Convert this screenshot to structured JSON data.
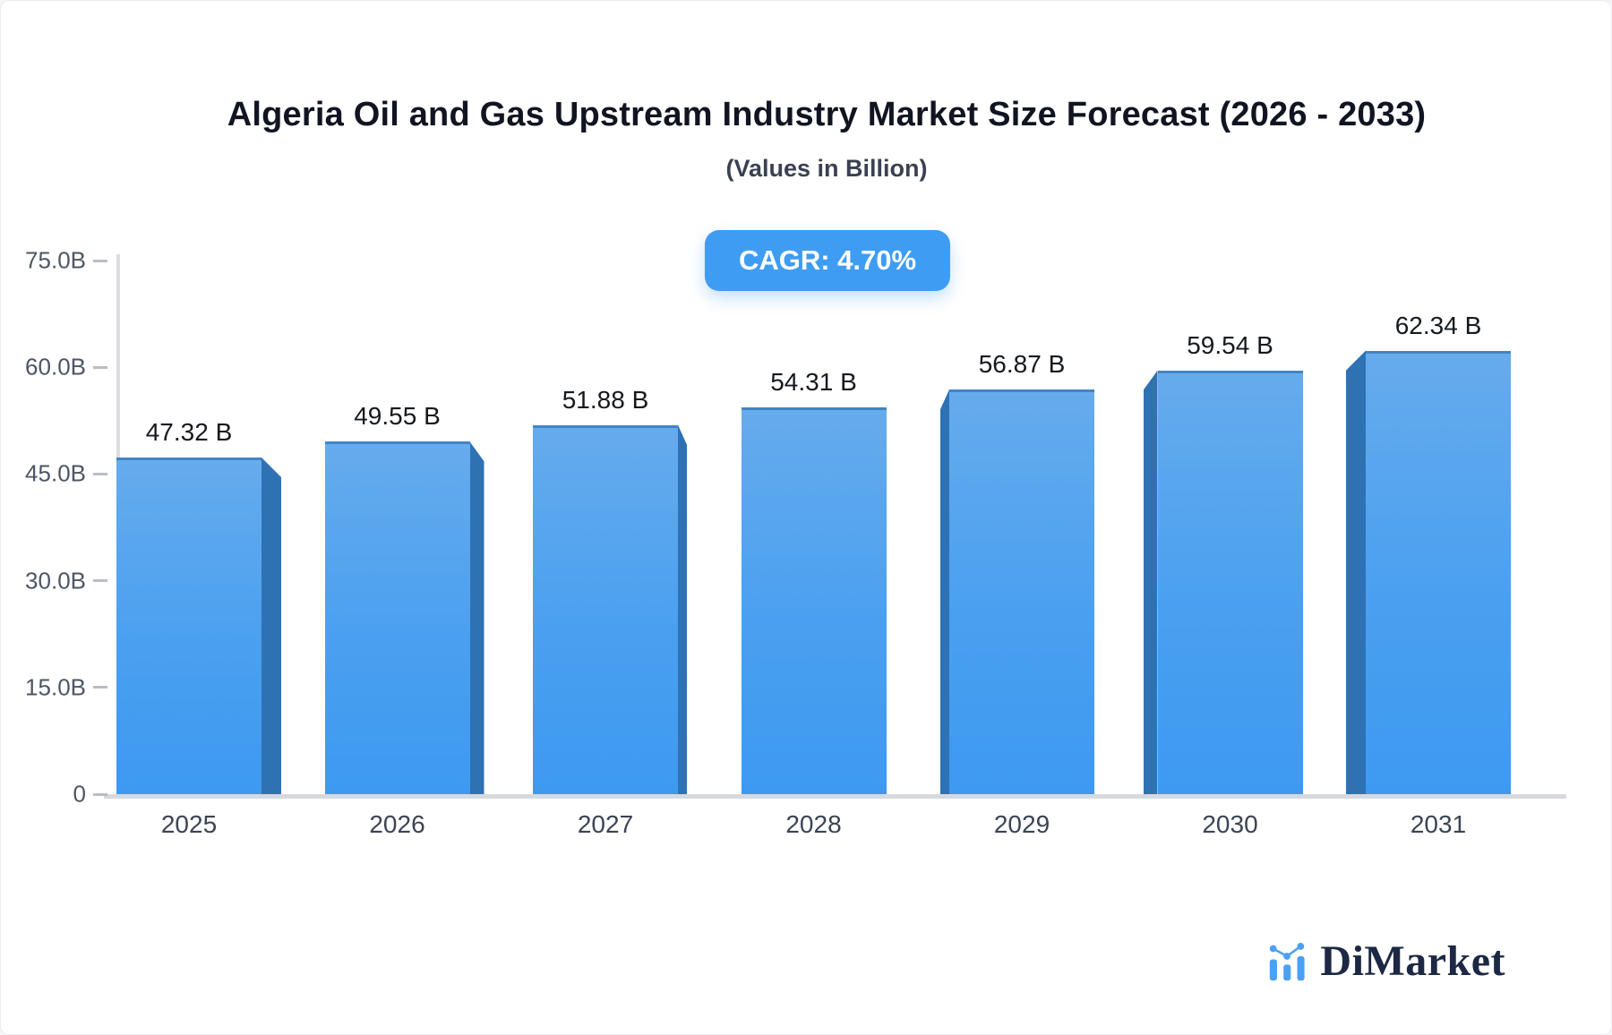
{
  "header": {
    "title": "Algeria Oil and Gas Upstream Industry Market Size Forecast (2026 - 2033)",
    "subtitle": "(Values in Billion)",
    "cagr_badge": "CAGR: 4.70%"
  },
  "chart_data": {
    "type": "bar",
    "title": "Algeria Oil and Gas Upstream Industry Market Size Forecast (2026 - 2033)",
    "subtitle": "(Values in Billion)",
    "annotation": "CAGR: 4.70%",
    "categories": [
      "2025",
      "2026",
      "2027",
      "2028",
      "2029",
      "2030",
      "2031"
    ],
    "values": [
      47.32,
      49.55,
      51.88,
      54.31,
      56.87,
      59.54,
      62.34
    ],
    "bar_labels": [
      "47.32 B",
      "49.55 B",
      "51.88 B",
      "54.31 B",
      "56.87 B",
      "59.54 B",
      "62.34 B"
    ],
    "unit": "Billion",
    "xlabel": "",
    "ylabel": "",
    "ylim": [
      0,
      75
    ],
    "grid": false,
    "legend": "none",
    "y_ticks": [
      {
        "value": 0,
        "label": "0"
      },
      {
        "value": 15,
        "label": "15.0B"
      },
      {
        "value": 30,
        "label": "30.0B"
      },
      {
        "value": 45,
        "label": "45.0B"
      },
      {
        "value": 60,
        "label": "60.0B"
      },
      {
        "value": 75,
        "label": "75.0B"
      }
    ],
    "colors": {
      "bar_gradient_top": "#66abec",
      "bar_gradient_bottom": "#3e99f1",
      "bar_side_face": "#2e72b4",
      "bar_top_edge": "#4285c6",
      "badge_background": "#3f9cf3",
      "badge_text": "#ffffff",
      "axis_line": "#d8d9dd",
      "tick_text": "#4d5665",
      "value_text": "#15191f"
    }
  },
  "footer": {
    "brand": "DiMarket",
    "brand_icon": "bar-line-chart-icon",
    "brand_color": "#1c2844",
    "brand_icon_color": "#4aa0f5"
  }
}
